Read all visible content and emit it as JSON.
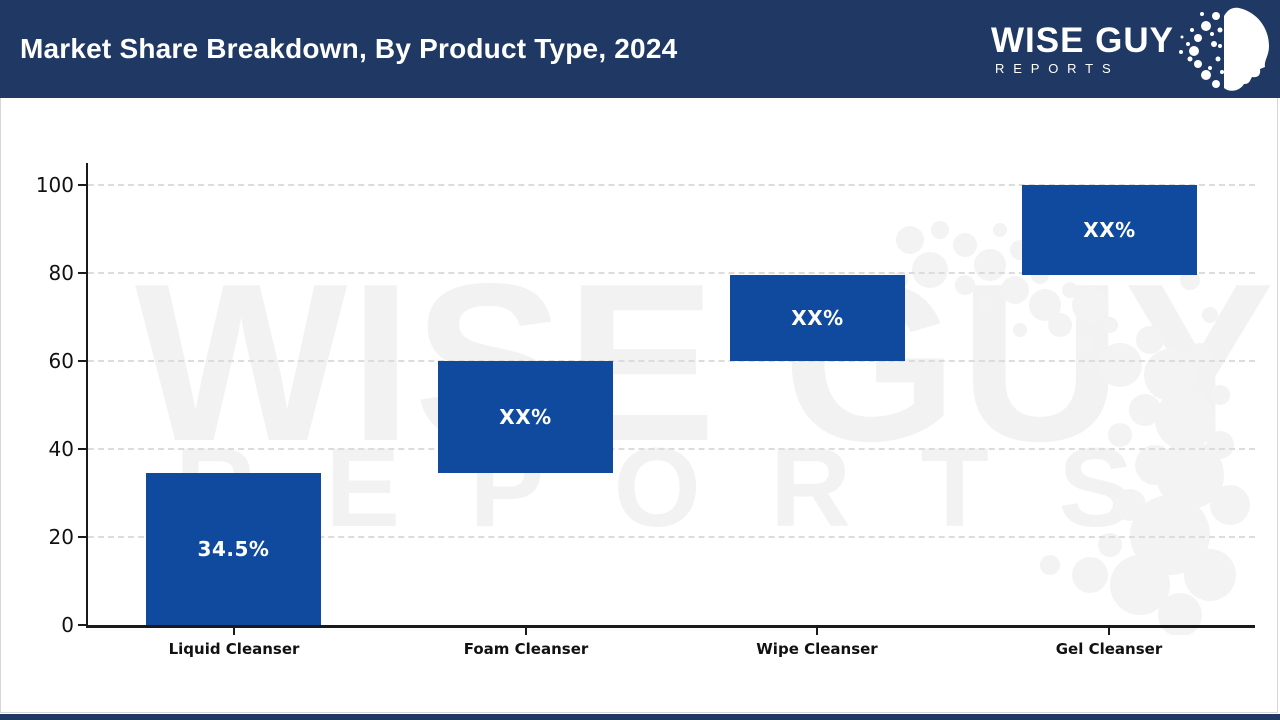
{
  "header": {
    "title": "Market Share Breakdown, By Product Type, 2024",
    "logo": {
      "line1": "WISE GUY",
      "line2": "REPORTS"
    }
  },
  "watermark": {
    "line1": "WISE GUY",
    "line2": "REPORTS"
  },
  "colors": {
    "header_background": "#1f3864",
    "bar_fill": "#0f4a9e",
    "gridline": "#dcdcdc",
    "axis": "#1a1a1a",
    "bar_label_text": "#ffffff",
    "watermark": "#f2f2f2"
  },
  "chart_data": {
    "type": "bar",
    "subtype": "waterfall",
    "title": "Market Share Breakdown, By Product Type, 2024",
    "categories": [
      "Liquid Cleanser",
      "Foam Cleanser",
      "Wipe Cleanser",
      "Gel Cleanser"
    ],
    "series": [
      {
        "name": "Market Share (%)",
        "segments": [
          [
            0,
            34.5
          ],
          [
            34.5,
            60
          ],
          [
            60,
            79.5
          ],
          [
            79.5,
            100
          ]
        ]
      }
    ],
    "bar_labels": [
      "34.5%",
      "XX%",
      "XX%",
      "XX%"
    ],
    "yticks": [
      0,
      20,
      40,
      60,
      80,
      100
    ],
    "ylim": [
      0,
      105
    ],
    "xlabel": "",
    "ylabel": "",
    "grid": "horizontal-dashed",
    "legend": "none"
  }
}
